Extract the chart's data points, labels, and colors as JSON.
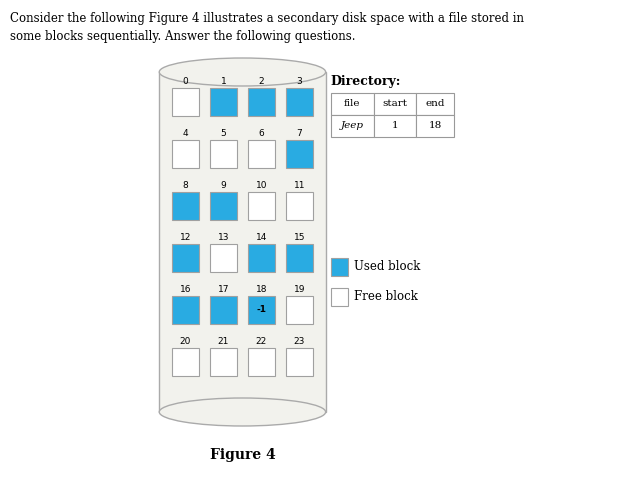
{
  "title_line1": "Consider the following Figure 4 illustrates a secondary disk space with a file stored in",
  "title_line2": "some blocks sequentially. Answer the following questions.",
  "figure_label": "Figure 4",
  "used_color": "#29ABE2",
  "free_color": "#FFFFFF",
  "border_color": "#A0A0A0",
  "cyl_face_color": "#F2F2ED",
  "cyl_edge_color": "#AAAAAA",
  "used_blocks": [
    1,
    2,
    3,
    7,
    8,
    9,
    12,
    14,
    15,
    16,
    17,
    18
  ],
  "special_block": 18,
  "special_text": "-1",
  "total_blocks": 24,
  "cols": 4,
  "rows": 6,
  "directory_title": "Directory:",
  "table_headers": [
    "file",
    "start",
    "end"
  ],
  "table_data": [
    [
      "Jeep",
      "1",
      "18"
    ]
  ],
  "legend_used": "Used block",
  "legend_free": "Free block"
}
